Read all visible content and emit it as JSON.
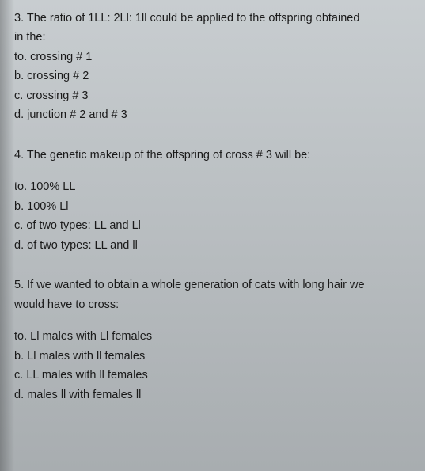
{
  "questions": [
    {
      "number": "3.",
      "text": "The ratio of 1LL: 2Ll: 1ll could be applied to the offspring obtained",
      "stem_extra": "in the:",
      "options": [
        {
          "label": "to.",
          "text": "crossing # 1"
        },
        {
          "label": "b.",
          "text": "crossing # 2"
        },
        {
          "label": "c.",
          "text": "crossing # 3"
        },
        {
          "label": "d.",
          "text": "junction # 2 and # 3"
        }
      ]
    },
    {
      "number": "4.",
      "text": "The genetic makeup of the offspring of cross # 3 will be:",
      "stem_extra": "",
      "options": [
        {
          "label": "to.",
          "text": "100% LL"
        },
        {
          "label": "b.",
          "text": "100% Ll"
        },
        {
          "label": "c.",
          "text": "of two types: LL and Ll"
        },
        {
          "label": "d.",
          "text": "of two types: LL and ll"
        }
      ]
    },
    {
      "number": "5.",
      "text": "If we wanted to obtain a whole generation of cats with long hair we",
      "stem_extra": "would have to cross:",
      "options": [
        {
          "label": "to.",
          "text": "Ll males with Ll females"
        },
        {
          "label": "b.",
          "text": "Ll males with ll females"
        },
        {
          "label": "c.",
          "text": "LL males with ll females"
        },
        {
          "label": "d.",
          "text": "males ll with females ll"
        }
      ]
    }
  ]
}
